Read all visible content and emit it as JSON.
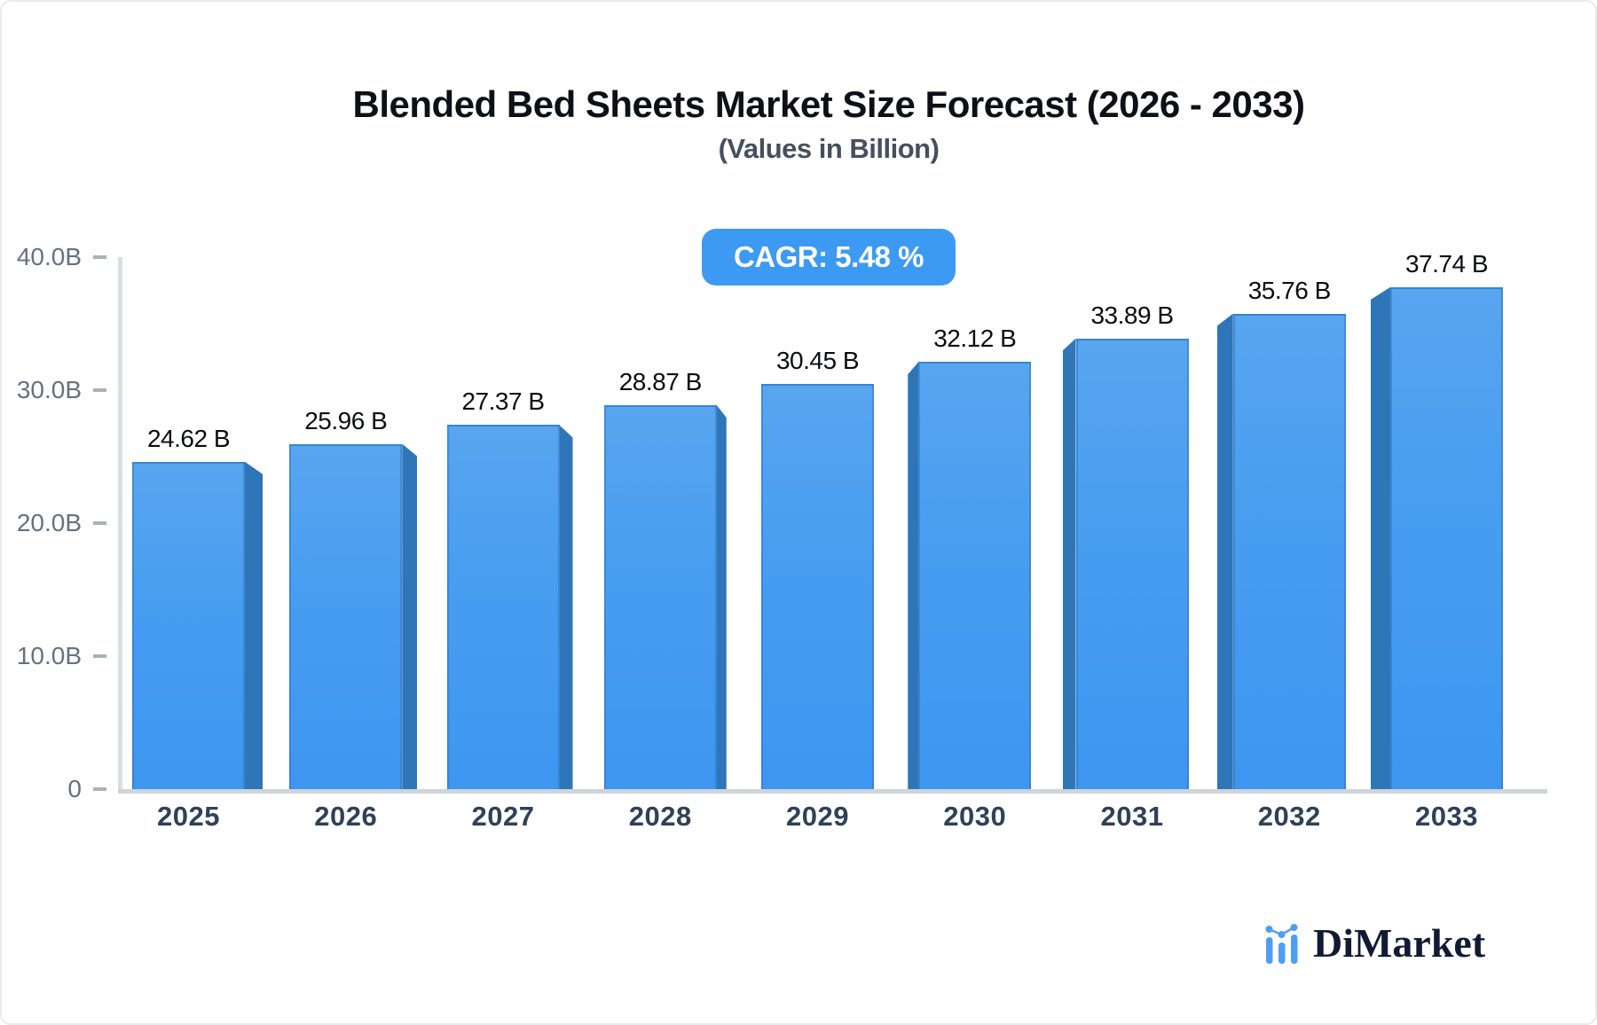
{
  "header": {
    "title": "Blended Bed Sheets Market Size Forecast (2026 - 2033)",
    "subtitle": "(Values in Billion)",
    "cagr_badge": "CAGR: 5.48 %"
  },
  "chart_data": {
    "type": "bar",
    "title": "Blended Bed Sheets Market Size Forecast (2026 - 2033)",
    "subtitle": "(Values in Billion)",
    "annotation": "CAGR: 5.48 %",
    "categories": [
      "2025",
      "2026",
      "2027",
      "2028",
      "2029",
      "2030",
      "2031",
      "2032",
      "2033"
    ],
    "values": [
      24.62,
      25.96,
      27.37,
      28.87,
      30.45,
      32.12,
      33.89,
      35.76,
      37.74
    ],
    "value_labels": [
      "24.62 B",
      "25.96 B",
      "27.37 B",
      "28.87 B",
      "30.45 B",
      "32.12 B",
      "33.89 B",
      "35.76 B",
      "37.74 B"
    ],
    "xlabel": "",
    "ylabel": "",
    "ylim": [
      0,
      40
    ],
    "y_ticks": [
      {
        "value": 40,
        "label": "40.0B"
      },
      {
        "value": 30,
        "label": "30.0B"
      },
      {
        "value": 20,
        "label": "20.0B"
      },
      {
        "value": 10,
        "label": "10.0B"
      },
      {
        "value": 0,
        "label": "0"
      }
    ],
    "grid": false,
    "legend": false,
    "colors": {
      "bar_top": "#58a5f0",
      "bar_bottom": "#3e96f0",
      "bar_side": "#2f76b8",
      "badge_background": "#3d9af3",
      "badge_text": "#ffffff",
      "axis_line": "#dadde2",
      "tick_text": "#667180",
      "category_text": "#2f4157",
      "value_text": "#0b0d11"
    }
  },
  "footer": {
    "brand": "DiMarket"
  }
}
